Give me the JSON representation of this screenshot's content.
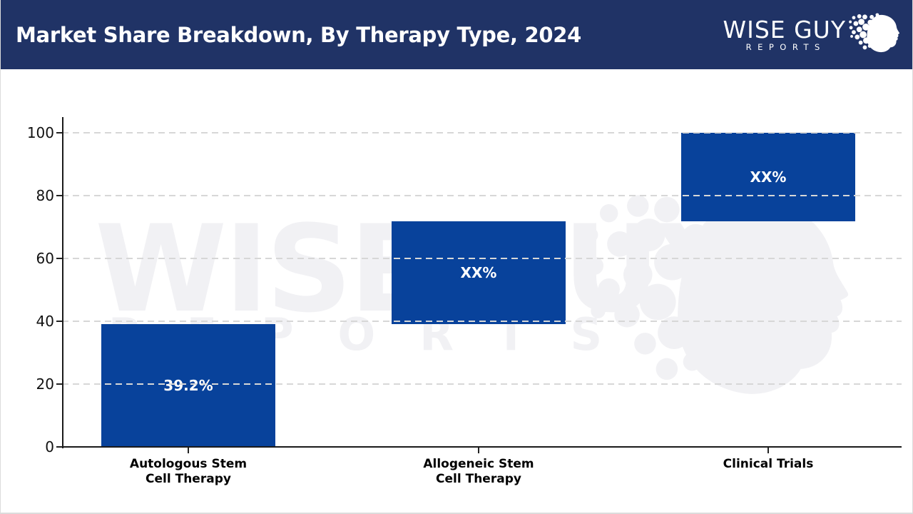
{
  "header": {
    "title": "Market Share Breakdown, By Therapy Type, 2024",
    "logo": {
      "name": "WISE GUY",
      "sub": "REPORTS"
    }
  },
  "watermark": {
    "big": "WISE GUY",
    "sub": "REPORTS"
  },
  "icons": {
    "logo_face": "wiseguy-face-profile-dots"
  },
  "colors": {
    "header_bg": "#203366",
    "bar": "#08429b",
    "grid": "#d7d7d7",
    "axis": "#1a1a1a",
    "bar_label": "#ffffff",
    "watermark": "#f1f1f4"
  },
  "chart_data": {
    "type": "bar",
    "variant": "floating-waterfall",
    "title": "Market Share Breakdown, By Therapy Type, 2024",
    "categories": [
      "Autologous Stem Cell Therapy",
      "Allogeneic Stem Cell Therapy",
      "Clinical Trials"
    ],
    "category_lines": [
      [
        "Autologous Stem",
        "Cell Therapy"
      ],
      [
        "Allogeneic Stem",
        "Cell Therapy"
      ],
      [
        "Clinical Trials"
      ]
    ],
    "bars": [
      {
        "category": "Autologous Stem Cell Therapy",
        "start": 0,
        "end": 39.2,
        "label": "39.2%"
      },
      {
        "category": "Allogeneic Stem Cell Therapy",
        "start": 39.2,
        "end": 71.8,
        "label": "XX%"
      },
      {
        "category": "Clinical Trials",
        "start": 71.8,
        "end": 100,
        "label": "XX%"
      }
    ],
    "xlabel": "",
    "ylabel": "",
    "ylim": [
      0,
      105
    ],
    "yticks": [
      0,
      20,
      40,
      60,
      80,
      100
    ],
    "grid": "horizontal-dashed",
    "legend": "none"
  }
}
